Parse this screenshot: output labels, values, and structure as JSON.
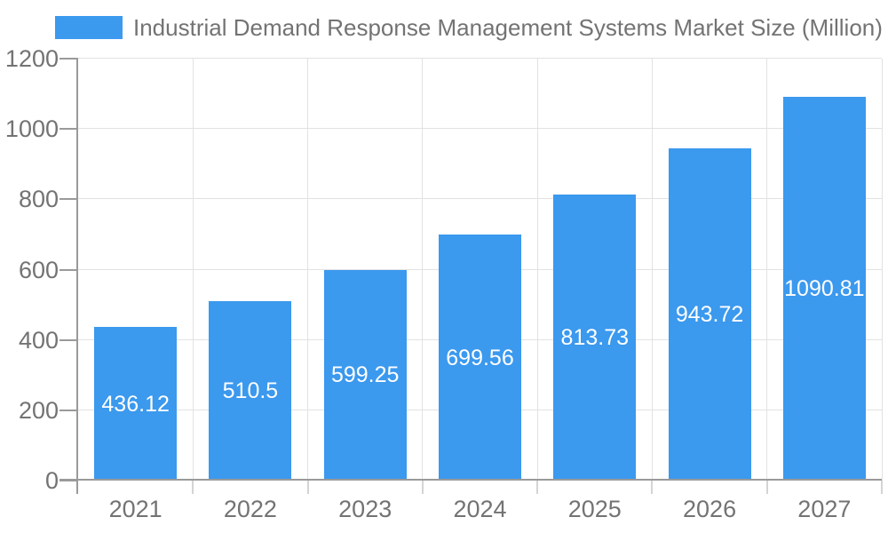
{
  "legend": {
    "label": "Industrial Demand Response Management Systems Market Size (Million)"
  },
  "chart_data": {
    "type": "bar",
    "title": "Industrial Demand Response Management Systems Market Size (Million)",
    "categories": [
      "2021",
      "2022",
      "2023",
      "2024",
      "2025",
      "2026",
      "2027"
    ],
    "values": [
      436.12,
      510.5,
      599.25,
      699.56,
      813.73,
      943.72,
      1090.81
    ],
    "value_labels": [
      "436.12",
      "510.5",
      "599.25",
      "699.56",
      "813.73",
      "943.72",
      "1090.81"
    ],
    "series": [
      {
        "name": "Industrial Demand Response Management Systems Market Size (Million)",
        "values": [
          436.12,
          510.5,
          599.25,
          699.56,
          813.73,
          943.72,
          1090.81
        ]
      }
    ],
    "xlabel": "",
    "ylabel": "",
    "ylim": [
      0,
      1200
    ],
    "yticks": [
      0,
      200,
      400,
      600,
      800,
      1000,
      1200
    ],
    "grid": true,
    "legend_position": "top-left",
    "bar_color": "#3b99ee",
    "value_label_color": "#ffffff",
    "axis_color": "#9a9a9a",
    "grid_color": "#e2e2e2",
    "text_color": "#737373"
  }
}
